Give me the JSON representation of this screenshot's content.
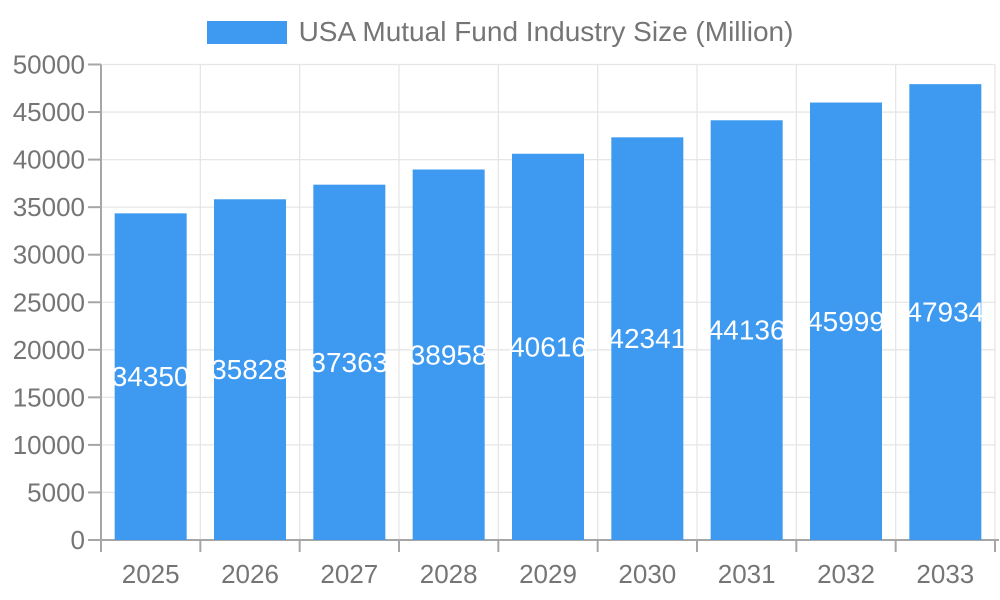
{
  "chart_data": {
    "type": "bar",
    "title": "USA Mutual Fund Industry Size (Million)",
    "legend_position": "top",
    "categories": [
      "2025",
      "2026",
      "2027",
      "2028",
      "2029",
      "2030",
      "2031",
      "2032",
      "2033"
    ],
    "values": [
      34350,
      35828,
      37363,
      38958,
      40616,
      42341,
      44136,
      45999,
      47934
    ],
    "data_labels": [
      "34350",
      "35828",
      "37363",
      "38958",
      "40616",
      "42341",
      "44136",
      "45999",
      "47934"
    ],
    "xlabel": "",
    "ylabel": "",
    "ylim": [
      0,
      50000
    ],
    "ytick_step": 5000,
    "ytick_labels": [
      "0",
      "5000",
      "10000",
      "15000",
      "20000",
      "25000",
      "30000",
      "35000",
      "40000",
      "45000",
      "50000"
    ],
    "grid": "on",
    "colors": {
      "bar": "#3D9AF0",
      "bar_label_text": "#ffffff",
      "axis_text": "#757575",
      "axis_line": "#a6a6a6",
      "grid_line": "#e6e6e6",
      "legend_text": "#757575",
      "background": "#ffffff"
    }
  }
}
